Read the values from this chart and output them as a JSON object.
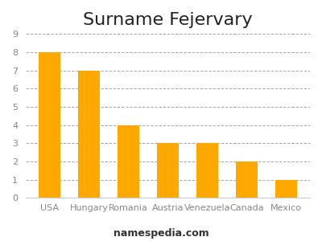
{
  "title": "Surname Fejervary",
  "categories": [
    "USA",
    "Hungary",
    "Romania",
    "Austria",
    "Venezuela",
    "Canada",
    "Mexico"
  ],
  "values": [
    8,
    7,
    4,
    3,
    3,
    2,
    1
  ],
  "bar_color": "#FFA800",
  "background_color": "#ffffff",
  "ylim": [
    0,
    9
  ],
  "yticks": [
    0,
    1,
    2,
    3,
    4,
    5,
    6,
    7,
    8,
    9
  ],
  "grid_color": "#aaaaaa",
  "title_fontsize": 16,
  "xtick_fontsize": 8,
  "ytick_fontsize": 8,
  "footer_text": "namespedia.com",
  "footer_fontsize": 9,
  "bar_width": 0.55
}
